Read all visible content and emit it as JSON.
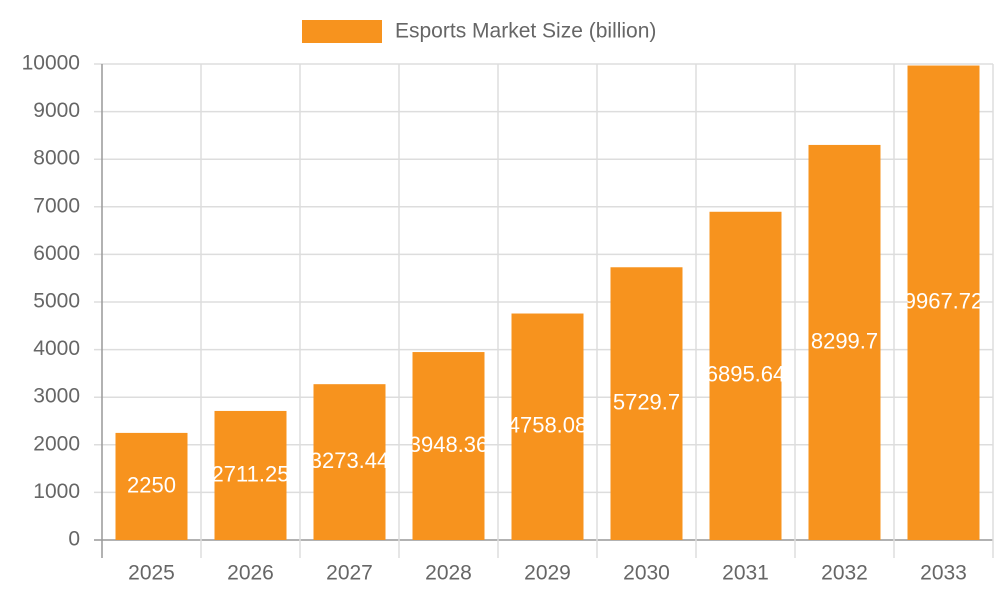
{
  "chart_data": {
    "type": "bar",
    "categories": [
      "2025",
      "2026",
      "2027",
      "2028",
      "2029",
      "2030",
      "2031",
      "2032",
      "2033"
    ],
    "series": [
      {
        "name": "Esports Market Size (billion)",
        "color": "#f7931e",
        "values": [
          2250,
          2711.25,
          3273.44,
          3948.36,
          4758.08,
          5729.7,
          6895.64,
          8299.7,
          9967.72
        ]
      }
    ],
    "ylim": [
      0,
      10000
    ],
    "yticks": [
      0,
      1000,
      2000,
      3000,
      4000,
      5000,
      6000,
      7000,
      8000,
      9000,
      10000
    ],
    "grid": true
  }
}
